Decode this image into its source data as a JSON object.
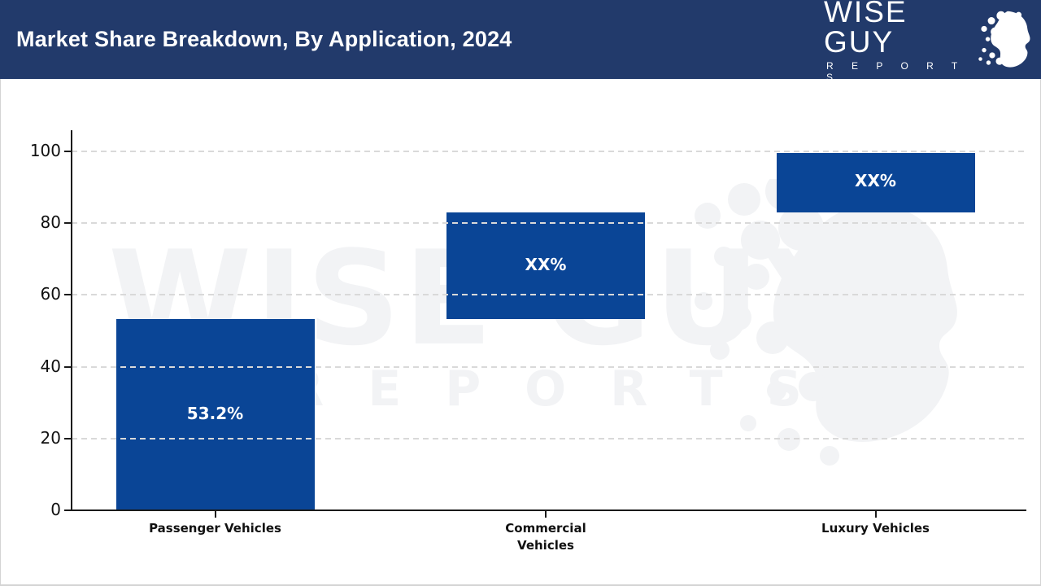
{
  "header": {
    "title": "Market Share Breakdown, By Application, 2024",
    "logo_line1": "WISE GUY",
    "logo_line2": "R E P O R T S"
  },
  "watermark": {
    "line1": "WISE GUY",
    "line2": "REPORTS"
  },
  "colors": {
    "header_bg": "#223a6b",
    "bar": "#0a4596",
    "bar_label": "#ffffff",
    "gridline": "#d9d9d9",
    "axis": "#1a1a1a",
    "watermark": "#f2f3f5"
  },
  "chart_data": {
    "type": "bar",
    "subtype": "waterfall-breakdown",
    "title": "Market Share Breakdown, By Application, 2024",
    "xlabel": "",
    "ylabel": "",
    "ylim": [
      0,
      106
    ],
    "yticks": [
      0,
      20,
      40,
      60,
      80,
      100
    ],
    "grid": {
      "axis": "y",
      "style": "dashed",
      "on": true,
      "drawn_over_bars": true
    },
    "legend": null,
    "categories": [
      "Passenger Vehicles",
      "Commercial Vehicles",
      "Luxury Vehicles"
    ],
    "bars": [
      {
        "category": "Passenger Vehicles",
        "label_lines": [
          "Passenger Vehicles"
        ],
        "from": 0,
        "to": 53.2,
        "value_label": "53.2%"
      },
      {
        "category": "Commercial Vehicles",
        "label_lines": [
          "Commercial",
          "Vehicles"
        ],
        "from": 53.2,
        "to": 83.0,
        "value_label": "XX%"
      },
      {
        "category": "Luxury Vehicles",
        "label_lines": [
          "Luxury Vehicles"
        ],
        "from": 83.0,
        "to": 99.6,
        "value_label": "XX%"
      }
    ]
  }
}
